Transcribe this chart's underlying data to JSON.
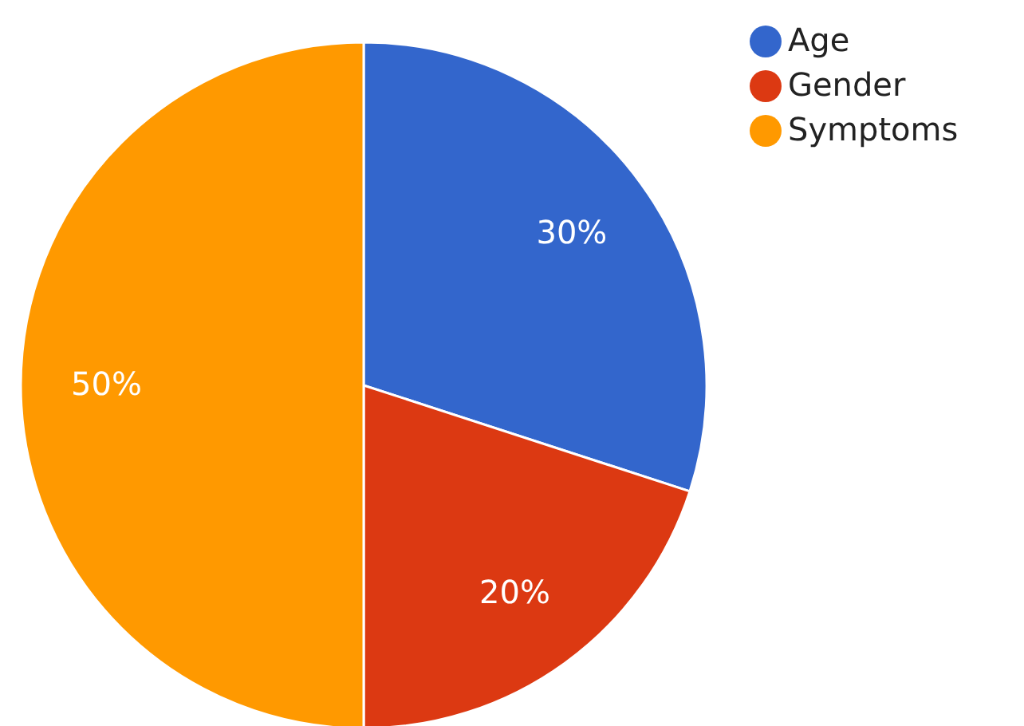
{
  "chart_data": {
    "type": "pie",
    "categories": [
      "Age",
      "Gender",
      "Symptoms"
    ],
    "values": [
      30,
      20,
      50
    ],
    "colors": [
      "#3366cc",
      "#dc3912",
      "#ff9900"
    ],
    "value_labels": [
      "30%",
      "20%",
      "50%"
    ],
    "legend": "top right"
  }
}
